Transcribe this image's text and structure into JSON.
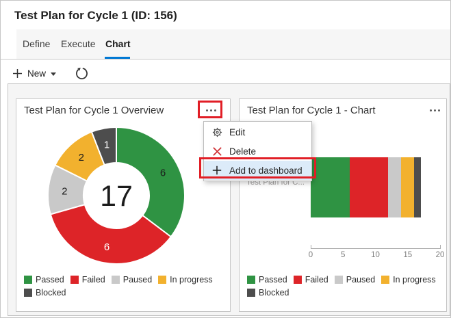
{
  "window": {
    "title": "Test Plan for Cycle 1 (ID: 156)"
  },
  "tabs": {
    "items": [
      {
        "label": "Define",
        "active": false
      },
      {
        "label": "Execute",
        "active": false
      },
      {
        "label": "Chart",
        "active": true
      }
    ]
  },
  "toolbar": {
    "new_label": "New",
    "new_icon": "plus-icon",
    "dropdown_icon": "chevron-down-icon",
    "refresh": "refresh-icon"
  },
  "colors": {
    "accent_blue": "#0078d4",
    "annotation_red": "#e11e26",
    "menu_highlight_bg": "#dcebf9",
    "passed": "#2f9343",
    "failed": "#dd2428",
    "paused": "#c9c9c9",
    "in_progress": "#f2b12e",
    "blocked": "#4d4d4d"
  },
  "cards": [
    {
      "title": "Test Plan for Cycle 1 Overview",
      "more_icon": "more-horizontal-icon"
    },
    {
      "title": "Test Plan for Cycle 1 - Chart",
      "more_icon": "more-horizontal-icon"
    }
  ],
  "context_menu": {
    "items": [
      {
        "icon": "gear-icon",
        "label": "Edit",
        "highlighted": false
      },
      {
        "icon": "x-icon",
        "label": "Delete",
        "highlighted": false
      },
      {
        "icon": "plus-icon",
        "label": "Add to dashboard",
        "highlighted": true
      }
    ]
  },
  "chart_data": [
    {
      "type": "pie",
      "subtype": "donut",
      "title": "Test Plan for Cycle 1 Overview",
      "center_total": "17",
      "categories": [
        "Passed",
        "Failed",
        "Paused",
        "In progress",
        "Blocked"
      ],
      "values": [
        6,
        6,
        2,
        2,
        1
      ],
      "colors": [
        "#2f9343",
        "#dd2428",
        "#c9c9c9",
        "#f2b12e",
        "#4d4d4d"
      ],
      "slice_label_colors": [
        "#1a1a1a",
        "#ffffff",
        "#1a1a1a",
        "#1a1a1a",
        "#ffffff"
      ],
      "start_angle": "top, clockwise",
      "legend_position": "bottom"
    },
    {
      "type": "bar",
      "orientation": "horizontal",
      "stacked": true,
      "title": "Test Plan for Cycle 1 - Chart",
      "categories": [
        "Test Plan for C..."
      ],
      "series": [
        {
          "name": "Passed",
          "values": [
            6
          ],
          "color": "#2f9343"
        },
        {
          "name": "Failed",
          "values": [
            6
          ],
          "color": "#dd2428"
        },
        {
          "name": "Paused",
          "values": [
            2
          ],
          "color": "#c9c9c9"
        },
        {
          "name": "In progress",
          "values": [
            2
          ],
          "color": "#f2b12e"
        },
        {
          "name": "Blocked",
          "values": [
            1
          ],
          "color": "#4d4d4d"
        }
      ],
      "xlim": [
        0,
        20
      ],
      "xticks": [
        0,
        5,
        10,
        15,
        20
      ],
      "grid": false,
      "legend_position": "bottom"
    }
  ]
}
